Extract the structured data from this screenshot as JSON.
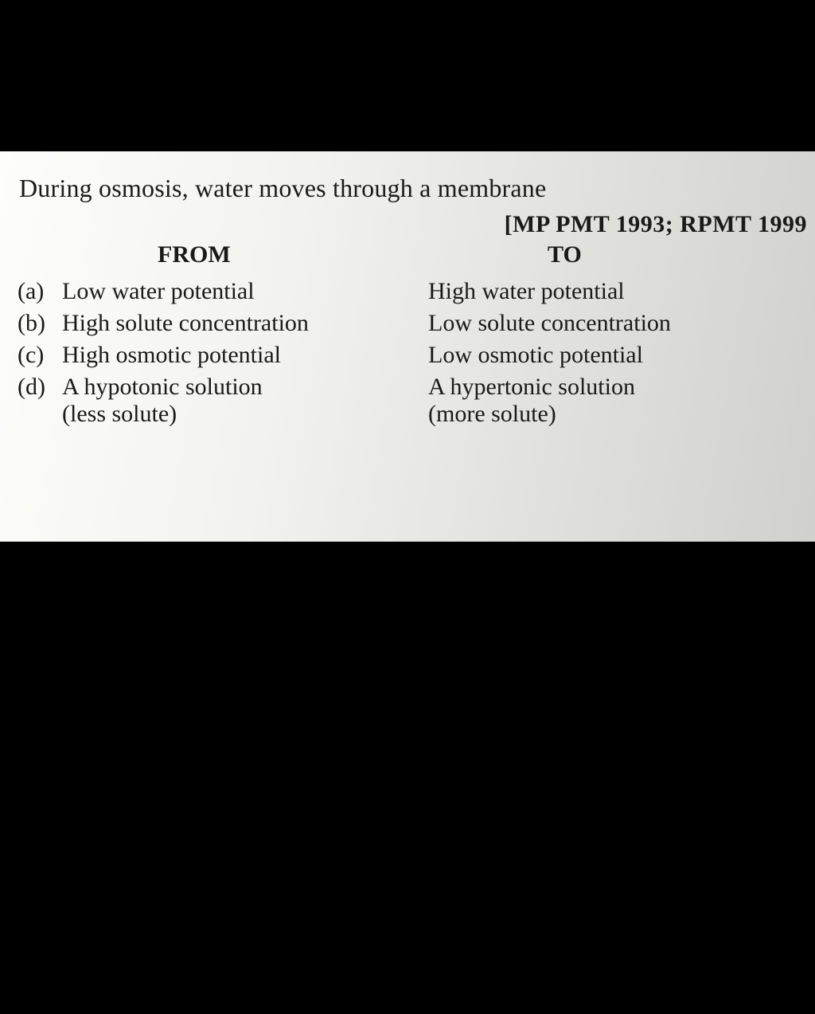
{
  "page": {
    "background": "#000000",
    "paper_gradient": [
      "#fdfdfb",
      "#f2f2ee",
      "#e2e2de",
      "#d0d0cc"
    ],
    "text_color": "#1a1a1a",
    "stem_fontsize": 32,
    "body_fontsize": 30,
    "bold_weight": 700
  },
  "question": {
    "stem": "During osmosis, water moves through a membrane",
    "source": "[MP PMT 1993; RPMT 1999",
    "headers": {
      "from": "FROM",
      "to": "TO"
    },
    "options": [
      {
        "label": "(a)",
        "from": "Low water potential",
        "to": "High water potential",
        "from_sub": "",
        "to_sub": ""
      },
      {
        "label": "(b)",
        "from": "High solute concentration",
        "to": "Low solute concentration",
        "from_sub": "",
        "to_sub": ""
      },
      {
        "label": "(c)",
        "from": "High osmotic potential",
        "to": "Low osmotic potential",
        "from_sub": "",
        "to_sub": ""
      },
      {
        "label": "(d)",
        "from": "A hypotonic solution",
        "to": "A hypertonic solution",
        "from_sub": "(less solute)",
        "to_sub": "(more solute)"
      }
    ]
  }
}
